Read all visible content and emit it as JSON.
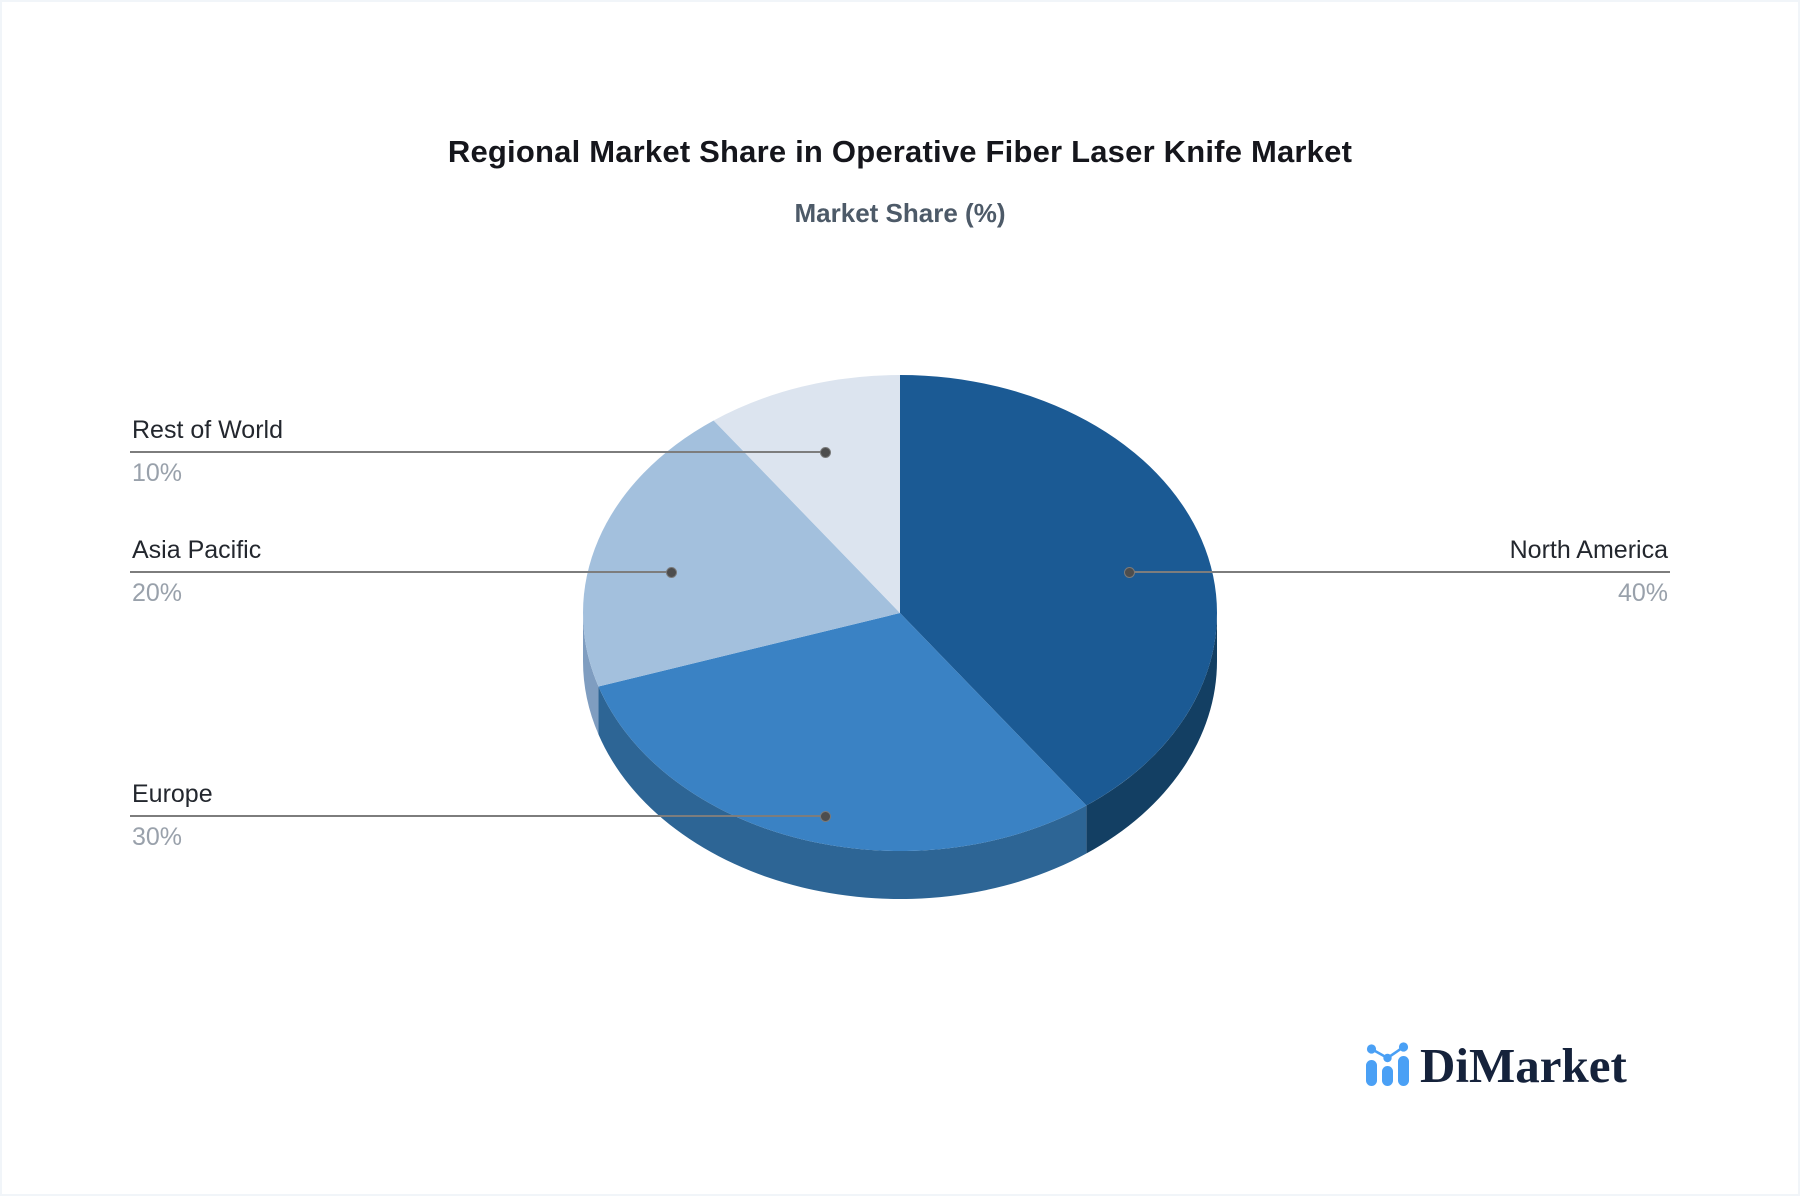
{
  "header": {
    "title": "Regional Market Share in Operative Fiber Laser Knife Market",
    "subtitle": "Market Share (%)"
  },
  "chart_data": {
    "type": "pie",
    "title": "Regional Market Share in Operative Fiber Laser Knife Market",
    "subtitle": "Market Share (%)",
    "style": "3d-pie",
    "direction": "clockwise",
    "start_angle_deg": 0,
    "legend_position": "callout-labels",
    "grid": false,
    "slices": [
      {
        "label": "North America",
        "value": 40,
        "display_value": "40%",
        "color": "#1b5a94",
        "side_color": "#133f63"
      },
      {
        "label": "Europe",
        "value": 30,
        "display_value": "30%",
        "color": "#3a82c4",
        "side_color": "#2d6595"
      },
      {
        "label": "Asia Pacific",
        "value": 20,
        "display_value": "20%",
        "color": "#a3c0dd",
        "side_color": "#7f9dc0"
      },
      {
        "label": "Rest of World",
        "value": 10,
        "display_value": "10%",
        "color": "#dce4ef",
        "side_color": "#b8c5d6"
      }
    ],
    "colors": {
      "leader_line": "#7d7d7d",
      "leader_dot": "#4d4d4d",
      "label_text": "#23272e",
      "value_text": "#99a1ab",
      "title_text": "#15161c",
      "subtitle_text": "#4d5a68"
    }
  },
  "callouts": [
    {
      "label": "Rest of World",
      "value": "10%"
    },
    {
      "label": "Asia Pacific",
      "value": "20%"
    },
    {
      "label": "Europe",
      "value": "30%"
    },
    {
      "label": "North America",
      "value": "40%"
    }
  ],
  "branding": {
    "name": "DiMarket",
    "icon": "mini-bar-line-chart-icon",
    "text_color": "#15223b",
    "icon_color": "#4aa0f5"
  }
}
